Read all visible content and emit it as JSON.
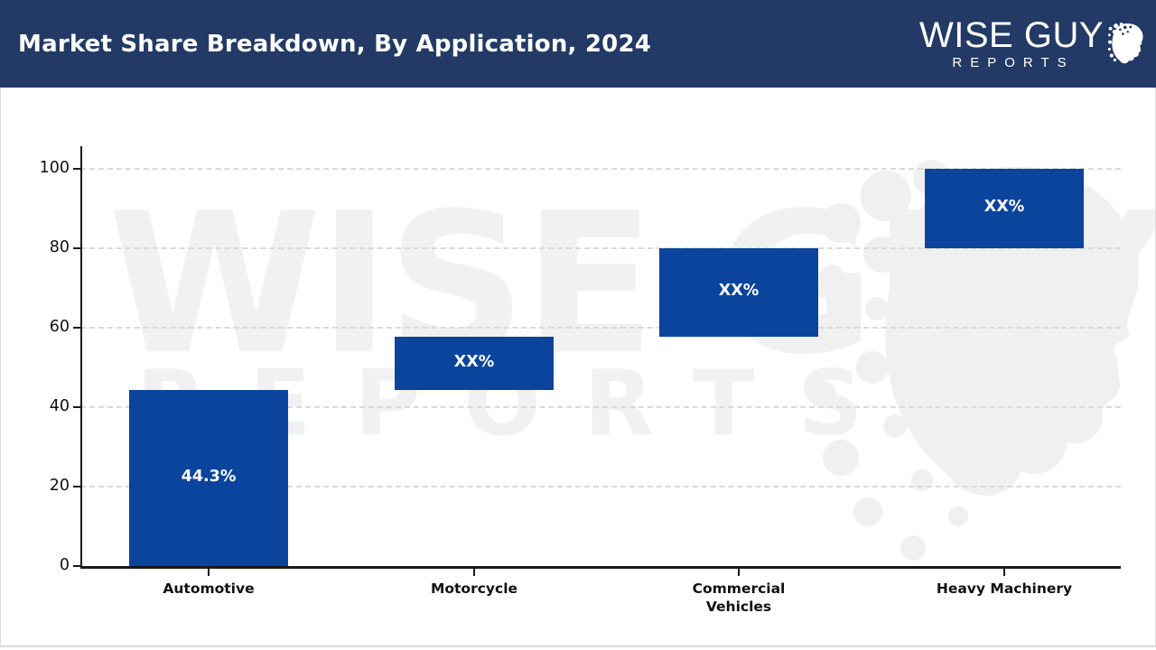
{
  "header": {
    "title": "Market Share Breakdown, By Application, 2024",
    "brand": {
      "name": "WISE GUY",
      "sub": "REPORTS"
    }
  },
  "watermark": {
    "line1": "WISE GUY",
    "line2": "REPORTS"
  },
  "chart_data": {
    "type": "bar",
    "subtype": "waterfall",
    "title": "Market Share Breakdown, By Application, 2024",
    "categories": [
      "Automotive",
      "Motorcycle",
      "Commercial Vehicles",
      "Heavy Machinery"
    ],
    "segments": [
      {
        "category": "Automotive",
        "start": 0,
        "end": 44.3,
        "label": "44.3%"
      },
      {
        "category": "Motorcycle",
        "start": 44.3,
        "end": 57.7,
        "label": "XX%"
      },
      {
        "category": "Commercial Vehicles",
        "start": 57.7,
        "end": 80,
        "label": "XX%"
      },
      {
        "category": "Heavy Machinery",
        "start": 80,
        "end": 100,
        "label": "XX%"
      }
    ],
    "yticks": [
      0,
      20,
      40,
      60,
      80,
      100
    ],
    "ylim": [
      0,
      104
    ],
    "xlabel": "",
    "ylabel": "",
    "legend": "none",
    "grid": "horizontal-dashed",
    "bar_color": "#0b449c",
    "bar_label_color": "#ffffff",
    "axis_color": "#1a1a1a",
    "grid_color": "#d9d9d9",
    "header_color": "#233a66",
    "watermark_color": "#f1f1f1"
  }
}
